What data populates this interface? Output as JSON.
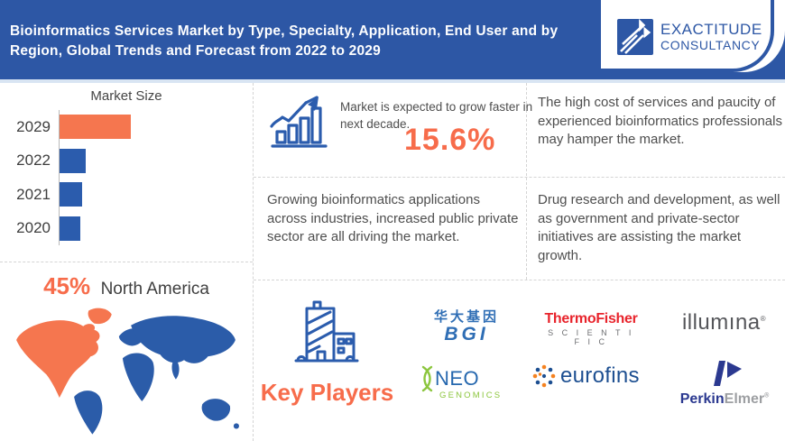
{
  "colors": {
    "header_blue": "#2D57A5",
    "accent_orange": "#F76C4B",
    "bar_blue": "#2B5CAD",
    "map_orange": "#F5764F",
    "map_blue": "#2B5CA9",
    "text_dark": "#4E4E4E",
    "dashed_line": "#D4D4D4"
  },
  "header": {
    "title_line1": "Bioinformatics Services Market by Type, Specialty, Application, End User and by",
    "title_line2": "Region, Global Trends and Forecast from 2022 to 2029",
    "logo": {
      "line1": "EXACTITUDE",
      "line2": "CONSULTANCY",
      "icon": "rising-arrows-icon"
    }
  },
  "chart_data": {
    "type": "bar",
    "orientation": "horizontal",
    "title": "Market Size",
    "categories": [
      "2029",
      "2022",
      "2021",
      "2020"
    ],
    "values": [
      100,
      37,
      32,
      29
    ],
    "value_note": "relative bar lengths, no numeric axis shown",
    "highlight_category": "2029",
    "highlight_color": "#F5764F",
    "default_color": "#2B5CAD",
    "axis": "left baseline only, no ticks, no gridlines"
  },
  "region": {
    "share": "45%",
    "label": "North America"
  },
  "growth": {
    "text": "Market is expected to grow faster in next decade.",
    "value": "15.6%"
  },
  "restraint": "The high cost of services and paucity of experienced bioinformatics professionals may hamper the market.",
  "driver": "Growing bioinformatics applications across industries, increased public private sector are all driving the market.",
  "opportunity": "Drug research and development, as well as government and private-sector initiatives are assisting the market growth.",
  "key_players": {
    "title": "Key Players",
    "companies": [
      {
        "name": "BGI",
        "line1": "华大基因",
        "line2": "BGI"
      },
      {
        "name": "Thermo Fisher Scientific",
        "line1": "ThermoFisher",
        "line2": "S C I E N T I F I C"
      },
      {
        "name": "Illumina",
        "line1": "illumına",
        "reg": "®"
      },
      {
        "name": "NeoGenomics",
        "line1": "NEO",
        "line2": "GENOMICS"
      },
      {
        "name": "Eurofins",
        "line1": "eurofins"
      },
      {
        "name": "PerkinElmer",
        "line1": "Perkin",
        "line2": "Elmer",
        "reg": "®"
      }
    ]
  }
}
